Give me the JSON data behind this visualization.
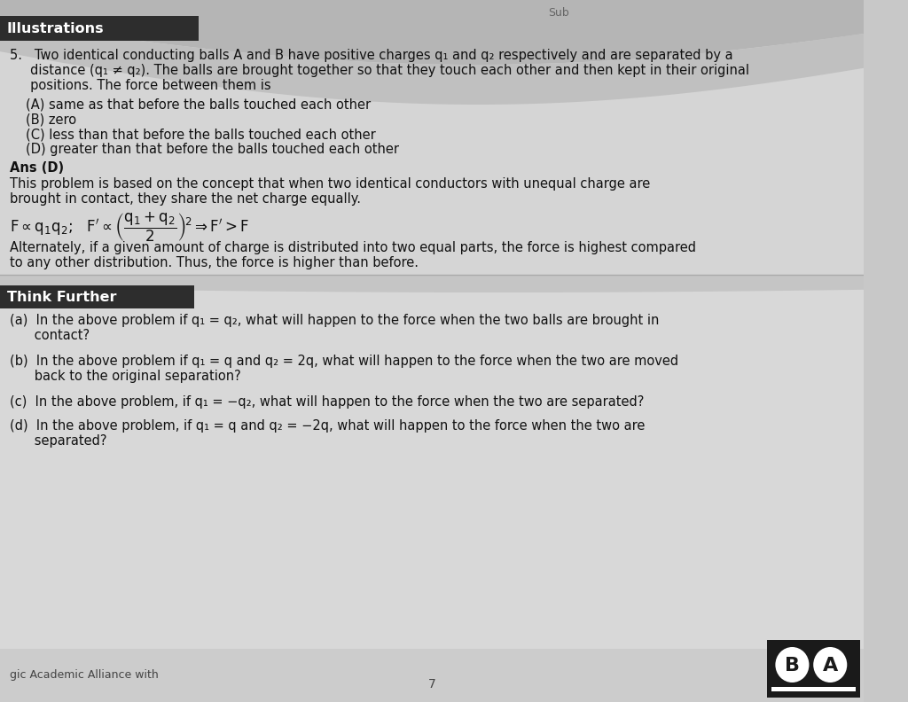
{
  "page_bg": "#c8c8c8",
  "content_bg": "#d8d8d8",
  "header_color": "#2d2d2d",
  "header_text_color": "#ffffff",
  "text_color": "#111111",
  "footer_text_color": "#444444",
  "illustrations_text": "Illustrations",
  "think_further_text": "Think Further",
  "sub_text": "Sub",
  "question_text_line1": "5.   Two identical conducting balls A and B have positive charges q₁ and q₂ respectively and are separated by a",
  "question_text_line2": "     distance (q₁ ≠ q₂). The balls are brought together so that they touch each other and then kept in their original",
  "question_text_line3": "     positions. The force between them is",
  "options": [
    "(A) same as that before the balls touched each other",
    "(B) zero",
    "(C) less than that before the balls touched each other",
    "(D) greater than that before the balls touched each other"
  ],
  "ans": "Ans (D)",
  "explanation_line1": "This problem is based on the concept that when two identical conductors with unequal charge are",
  "explanation_line2": "brought in contact, they share the net charge equally.",
  "alternately_line1": "Alternately, if a given amount of charge is distributed into two equal parts, the force is highest compared",
  "alternately_line2": "to any other distribution. Thus, the force is higher than before.",
  "tf_a_line1": "(a)  In the above problem if q₁ = q₂, what will happen to the force when the two balls are brought in",
  "tf_a_line2": "      contact?",
  "tf_b_line1": "(b)  In the above problem if q₁ = q and q₂ = 2q, what will happen to the force when the two are moved",
  "tf_b_line2": "      back to the original separation?",
  "tf_c": "(c)  In the above problem, if q₁ = −q₂, what will happen to the force when the two are separated?",
  "tf_d_line1": "(d)  In the above problem, if q₁ = q and q₂ = −2q, what will happen to the force when the two are",
  "tf_d_line2": "      separated?",
  "footer_left": "gic Academic Alliance with",
  "page_number": "7",
  "logo_color": "#1a1a1a",
  "logo_text_B": "B",
  "logo_text_A": "A",
  "curve_top_color": "#b8b8b8",
  "curve_mid_color": "#c8c8c8"
}
